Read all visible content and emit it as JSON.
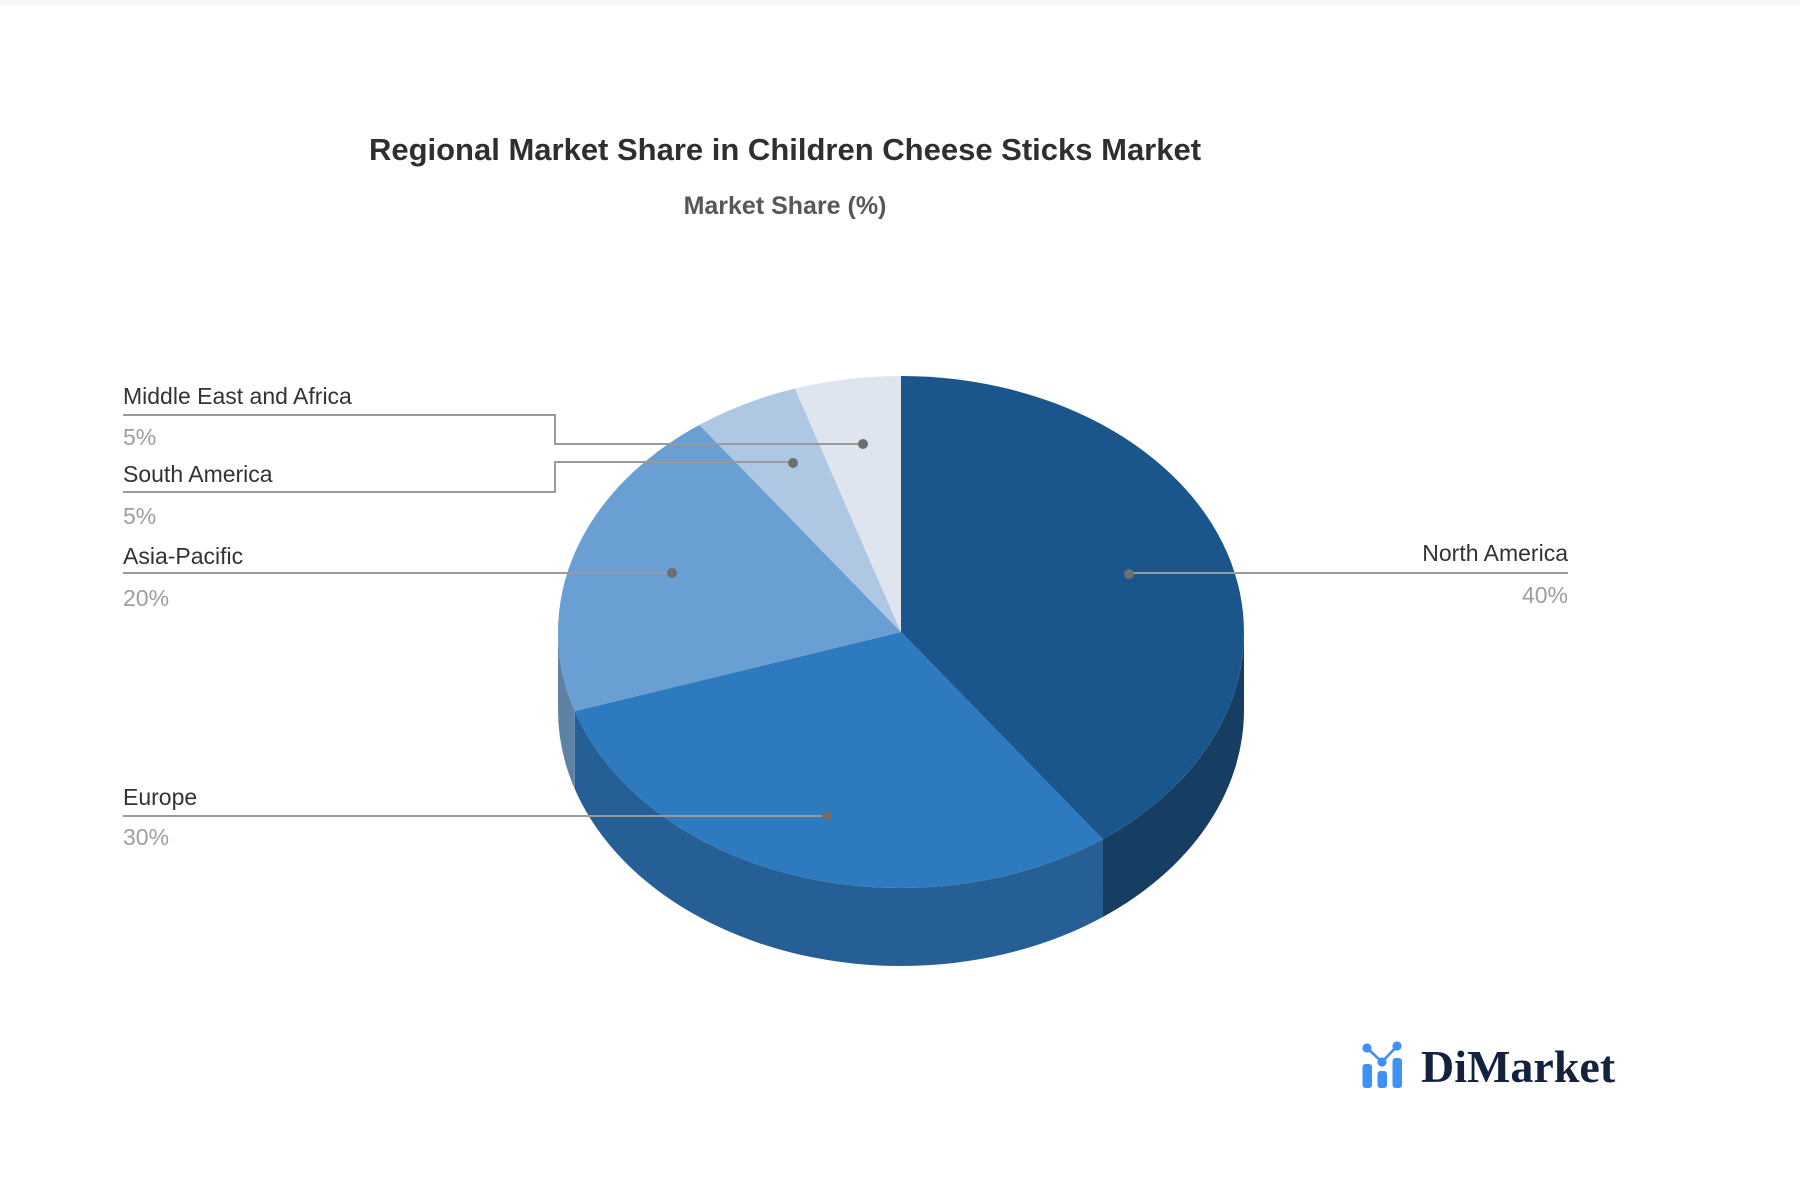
{
  "title": "Regional Market Share in Children Cheese Sticks Market",
  "subtitle": "Market Share (%)",
  "logo": {
    "text": "DiMarket",
    "icon": "bar-chart-logo-icon",
    "text_color": "#15223e",
    "icon_color": "#3e92f5"
  },
  "chart_data": {
    "type": "pie",
    "projection": "3d",
    "title": "Regional Market Share in Children Cheese Sticks Market",
    "subtitle": "Market Share (%)",
    "unit": "%",
    "start_angle_deg": 0,
    "direction": "clockwise",
    "legend": "none",
    "label_color": "#333333",
    "value_color": "#9e9e9e",
    "line_color": "#9a9a9a",
    "dot_color": "#6e6e6e",
    "slices": [
      {
        "label": "North America",
        "value": 40,
        "display": "40%",
        "color": "#1a568c",
        "side_color": "#163e63"
      },
      {
        "label": "Europe",
        "value": 30,
        "display": "30%",
        "color": "#2e7abf",
        "side_color": "#255f95"
      },
      {
        "label": "Asia-Pacific",
        "value": 20,
        "display": "20%",
        "color": "#699fd2",
        "side_color": "#5d82a6"
      },
      {
        "label": "South America",
        "value": 5,
        "display": "5%",
        "color": "#aec7e2",
        "side_color": "#8da6be"
      },
      {
        "label": "Middle East and Africa",
        "value": 5,
        "display": "5%",
        "color": "#dfe5ef",
        "side_color": "#b8c1cd"
      }
    ]
  }
}
